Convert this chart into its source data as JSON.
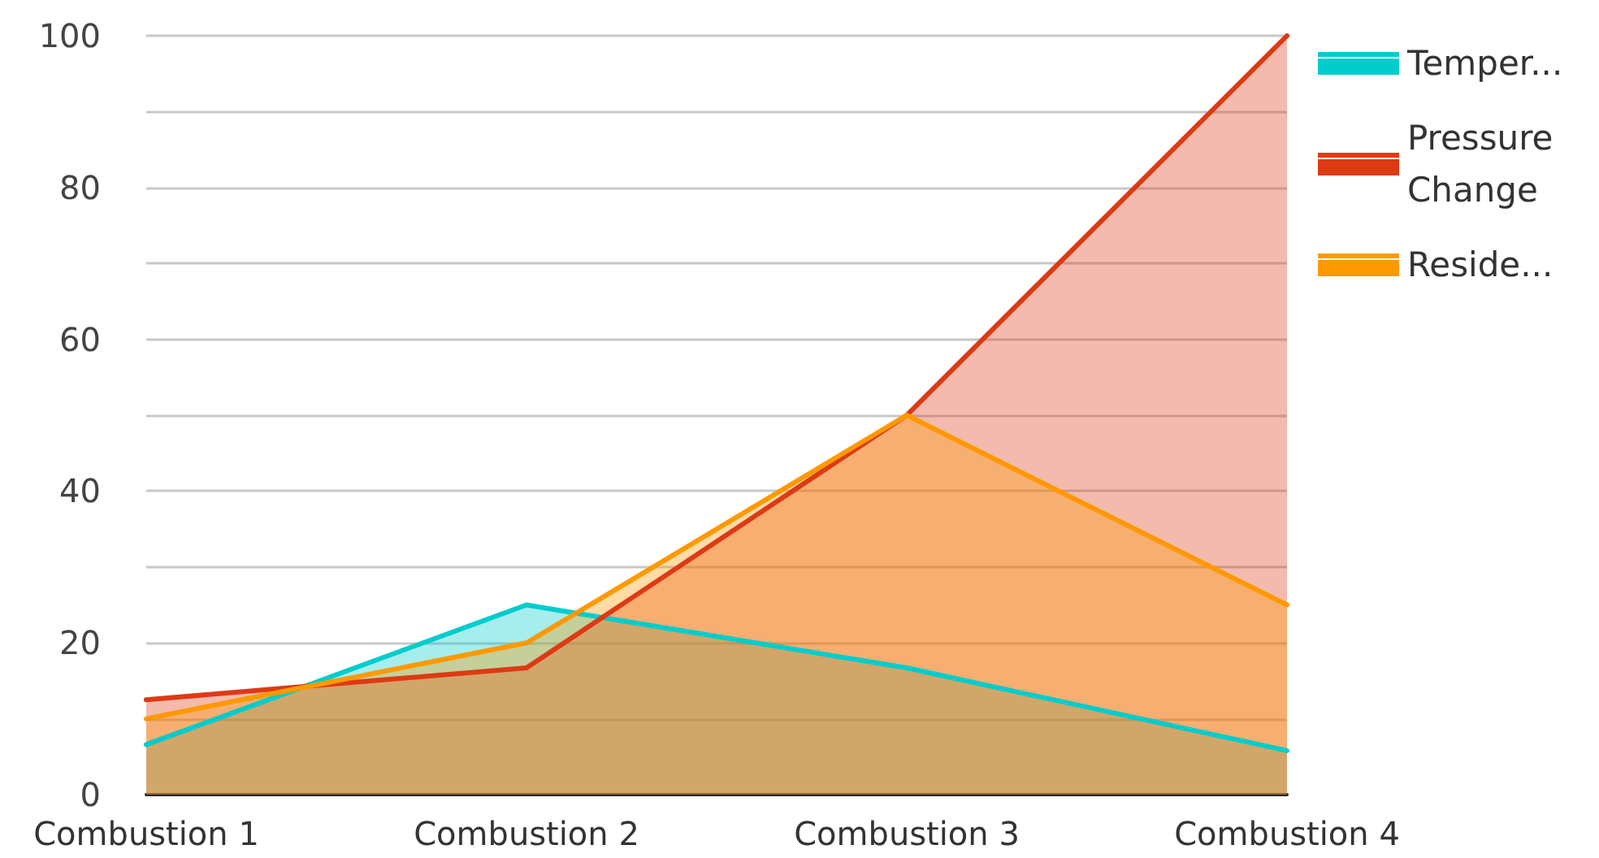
{
  "chart_data": {
    "type": "area",
    "categories": [
      "Combustion 1",
      "Combustion 2",
      "Combustion 3",
      "Combustion 4"
    ],
    "series": [
      {
        "name": "Temper...",
        "color": "#00cccc",
        "values": [
          6.6,
          25,
          16.7,
          5.8
        ]
      },
      {
        "name": "Pressure Change",
        "color": "#dd3a14",
        "values": [
          12.5,
          16.7,
          50,
          100
        ]
      },
      {
        "name": "Reside...",
        "color": "#ff9900",
        "values": [
          10,
          20,
          50,
          25
        ]
      }
    ],
    "ylim": [
      0,
      100
    ],
    "yticks": [
      0,
      {
        "value": 10,
        "label": null
      },
      20,
      {
        "value": 30,
        "label": null
      },
      40,
      {
        "value": 50,
        "label": null
      },
      60,
      {
        "value": 70,
        "label": null
      },
      80,
      {
        "value": 90,
        "label": null
      },
      100
    ],
    "grid": true,
    "legend": "right",
    "marker": "none",
    "line_style": "solid"
  }
}
